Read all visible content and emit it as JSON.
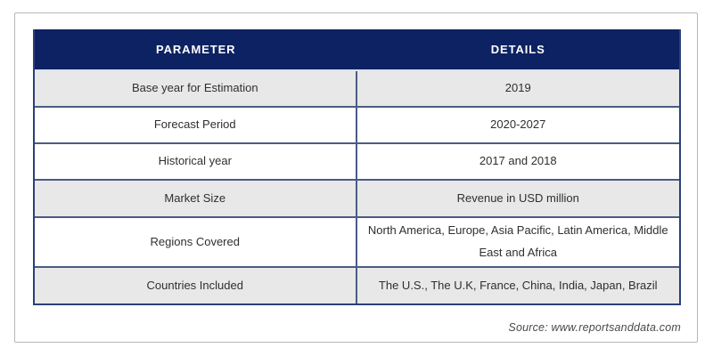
{
  "table": {
    "header": {
      "parameter": "PARAMETER",
      "details": "DETAILS"
    },
    "rows": [
      {
        "parameter": "Base year for Estimation",
        "details": "2019"
      },
      {
        "parameter": "Forecast Period",
        "details": "2020-2027"
      },
      {
        "parameter": "Historical year",
        "details": "2017 and 2018"
      },
      {
        "parameter": "Market Size",
        "details": "Revenue in USD million"
      },
      {
        "parameter": "Regions Covered",
        "details": "North America, Europe, Asia Pacific, Latin America, Middle East and Africa"
      },
      {
        "parameter": "Countries Included",
        "details": "The U.S., The  U.K, France, China, India, Japan, Brazil"
      }
    ]
  },
  "source": {
    "text": "Source: www.reportsanddata.com"
  },
  "colors": {
    "header_bg": "#0d2262",
    "alt_row_bg": "#e8e8e8",
    "table_border": "#2b4077",
    "row_border": "#4a5c84",
    "frame_border": "#b7b7b7"
  }
}
